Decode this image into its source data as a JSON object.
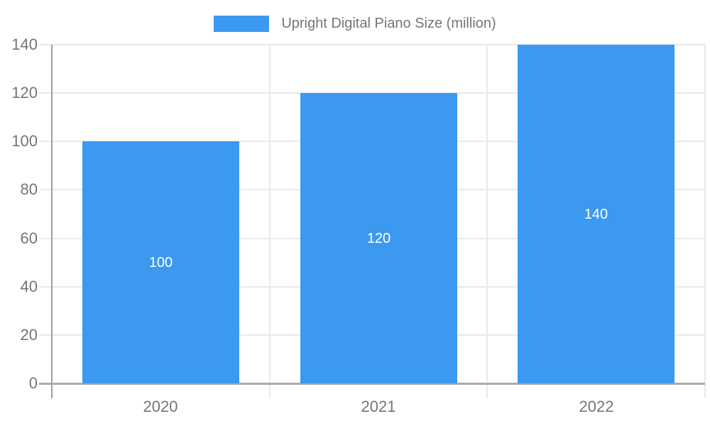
{
  "chart_data": {
    "type": "bar",
    "title": "Upright Digital Piano Size (million)",
    "series": [
      {
        "name": "Upright Digital Piano Size (million)",
        "values": [
          100,
          120,
          140
        ]
      }
    ],
    "categories": [
      "2020",
      "2021",
      "2022"
    ],
    "data_labels": [
      "100",
      "120",
      "140"
    ],
    "xlabel": "",
    "ylabel": "",
    "ylim": [
      0,
      140
    ],
    "ytick_interval": 20,
    "yticks": [
      0,
      20,
      40,
      60,
      80,
      100,
      120,
      140
    ],
    "grid": true,
    "legend_position": "top",
    "colors": {
      "bar": "#3b99f0",
      "gridline": "#e9e9e9",
      "axis": "#ababab",
      "y_axis": "#9e9e9e",
      "tick": "#d6d6d6",
      "label_text": "#757575",
      "data_label_text": "#ffffff",
      "background": "#ffffff"
    }
  }
}
